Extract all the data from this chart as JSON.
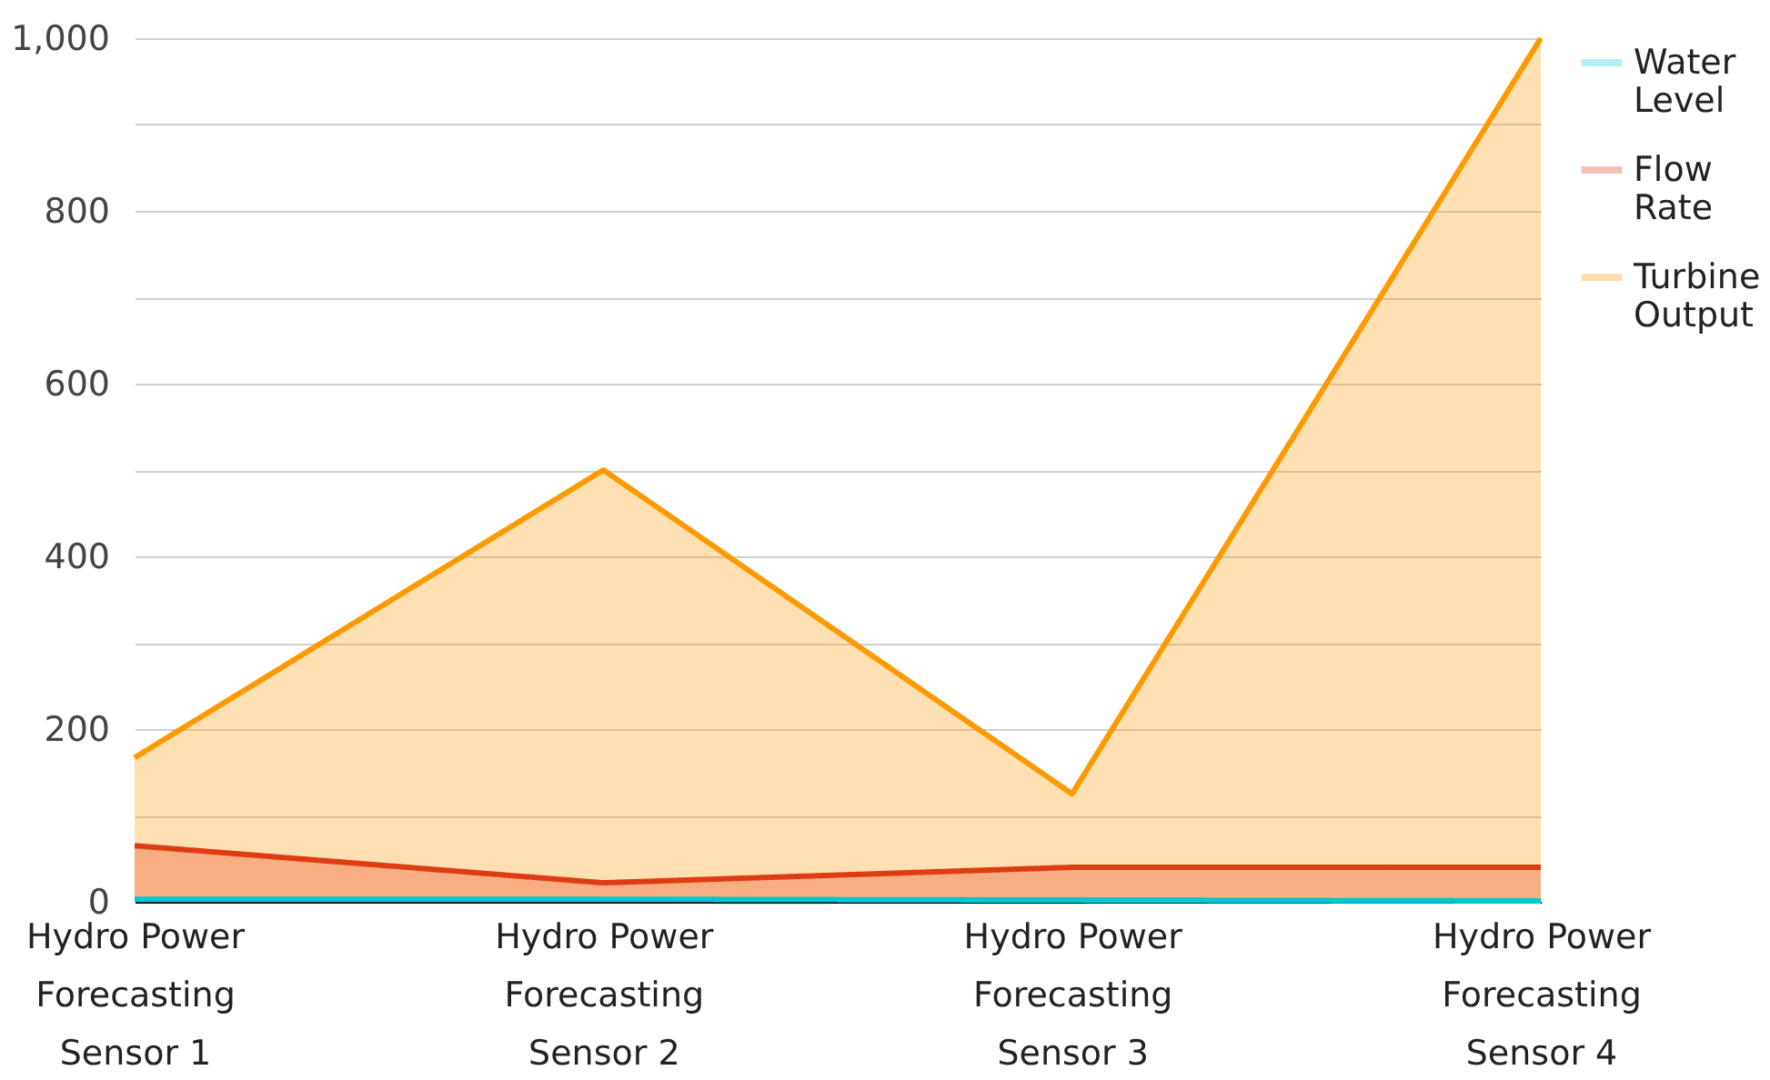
{
  "chart_data": {
    "type": "area",
    "categories": [
      "Hydro Power Forecasting Sensor 1",
      "Hydro Power Forecasting Sensor 2",
      "Hydro Power Forecasting Sensor 3",
      "Hydro Power Forecasting Sensor 4"
    ],
    "series": [
      {
        "name": "Water Level",
        "color": "#00c8d2",
        "values": [
          3,
          3,
          2,
          1
        ]
      },
      {
        "name": "Flow Rate",
        "color": "#e03c14",
        "values": [
          65,
          22,
          40,
          40
        ]
      },
      {
        "name": "Turbine Output",
        "color": "#ff9900",
        "values": [
          167,
          500,
          125,
          1000
        ]
      }
    ],
    "ylim": [
      0,
      1000
    ],
    "yticks": [
      0,
      {
        "value": 100,
        "label": null
      },
      200,
      {
        "value": 300,
        "label": null
      },
      400,
      {
        "value": 500,
        "label": null
      },
      600,
      {
        "value": 700,
        "label": null
      },
      800,
      {
        "value": 900,
        "label": null
      },
      {
        "value": 1000,
        "label": "1,000"
      }
    ],
    "grid": "y",
    "legend": "top right",
    "line_style": "solid",
    "marker": "none"
  }
}
